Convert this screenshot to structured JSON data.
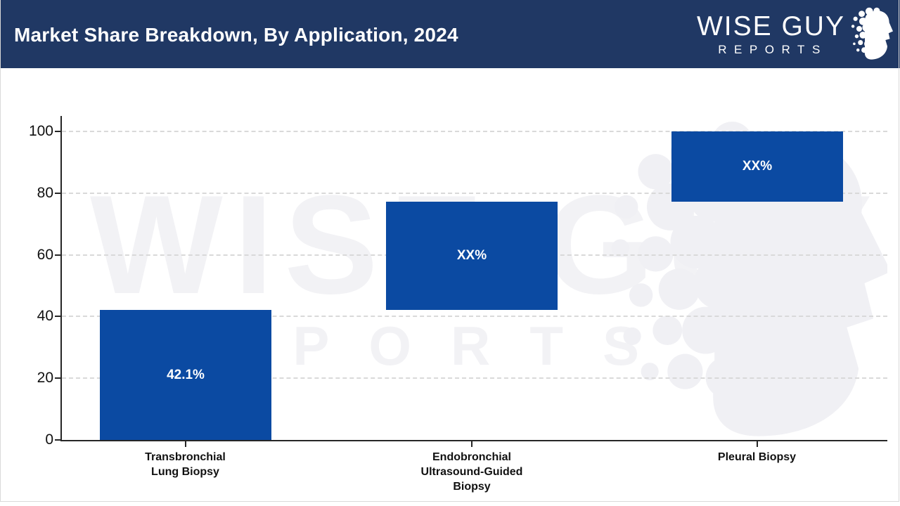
{
  "header": {
    "title": "Market Share Breakdown, By Application, 2024",
    "background": "#203864",
    "logo": {
      "line1": "WISE GUY",
      "line2": "REPORTS"
    }
  },
  "watermark": {
    "line1": "WISE GUY",
    "line2": "REPORTS"
  },
  "chart_data": {
    "type": "bar",
    "variant": "stacked-waterfall",
    "title": "Market Share Breakdown, By Application, 2024",
    "categories": [
      "Transbronchial\nLung Biopsy",
      "Endobronchial\nUltrasound-Guided\nBiopsy",
      "Pleural Biopsy"
    ],
    "segments": [
      [
        0,
        42.1
      ],
      [
        42.1,
        77.3
      ],
      [
        77.3,
        100
      ]
    ],
    "bar_labels": [
      "42.1%",
      "XX%",
      "XX%"
    ],
    "yticks": [
      0,
      20,
      40,
      60,
      80,
      100
    ],
    "ylim": [
      0,
      105
    ],
    "xlabel": "",
    "ylabel": "",
    "grid": "horizontal-dashed",
    "legend": "none",
    "bar_color": "#0b4aa2",
    "bar_label_color": "#ffffff",
    "axis_color": "#262626",
    "grid_color": "#d9d9d9"
  }
}
